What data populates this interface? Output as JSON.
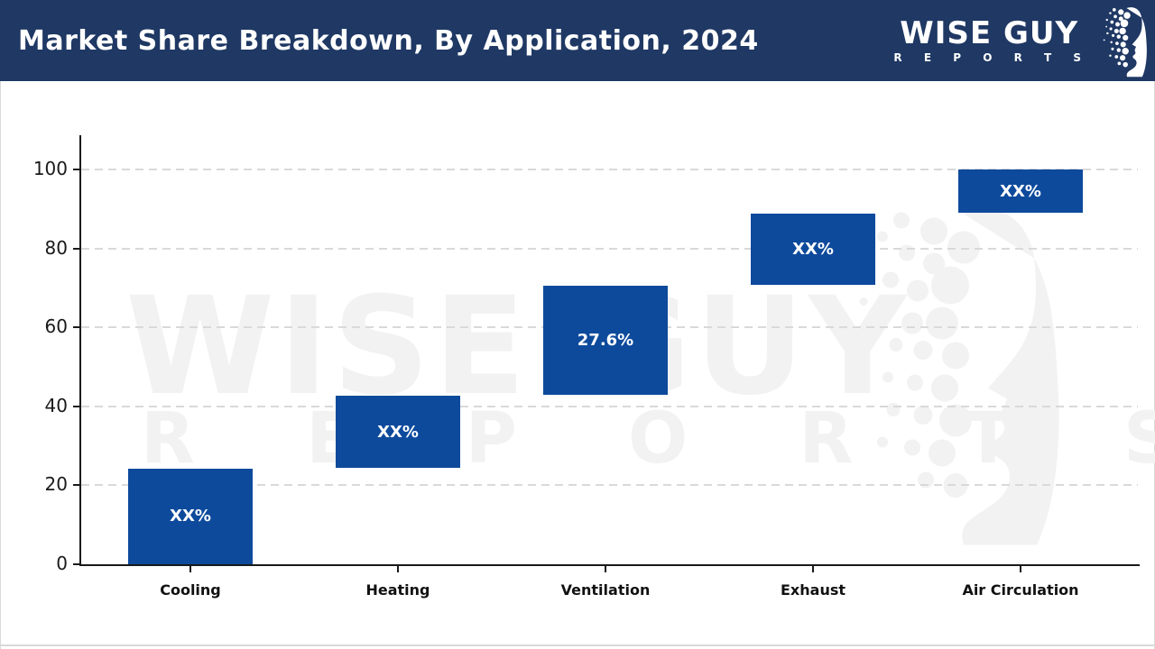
{
  "header": {
    "title": "Market Share Breakdown, By Application, 2024",
    "logo": {
      "line1": "WISE GUY",
      "line2": "R E P O R T S"
    }
  },
  "watermark": {
    "line1": "WISE GUY",
    "line2": "R E P O R T S"
  },
  "colors": {
    "header_bg": "#1f3864",
    "bar_blue": "#0d4a9c",
    "grid_gray": "#d9d9d9",
    "axis_black": "#1a1a1a",
    "watermark_gray": "#f2f2f2",
    "bar_label_white": "#ffffff"
  },
  "chart_data": {
    "type": "bar",
    "subtype": "waterfall",
    "title": "Market Share Breakdown, By Application, 2024",
    "xlabel": "",
    "ylabel": "",
    "categories": [
      "Cooling",
      "Heating",
      "Ventilation",
      "Exhaust",
      "Air Circulation"
    ],
    "segments": [
      {
        "category": "Cooling",
        "start": 0,
        "end": 24.3,
        "label": "XX%"
      },
      {
        "category": "Heating",
        "start": 24.4,
        "end": 42.7,
        "label": "XX%"
      },
      {
        "category": "Ventilation",
        "start": 42.9,
        "end": 70.5,
        "label": "27.6%"
      },
      {
        "category": "Exhaust",
        "start": 70.8,
        "end": 88.8,
        "label": "XX%"
      },
      {
        "category": "Air Circulation",
        "start": 89.0,
        "end": 100.0,
        "label": "XX%"
      }
    ],
    "yticks": [
      0,
      20,
      40,
      60,
      80,
      100
    ],
    "ylim": [
      0,
      100
    ],
    "grid": "horizontal-dashed",
    "legend": "none",
    "bar_color": "#0d4a9c",
    "label_color": "#ffffff"
  }
}
